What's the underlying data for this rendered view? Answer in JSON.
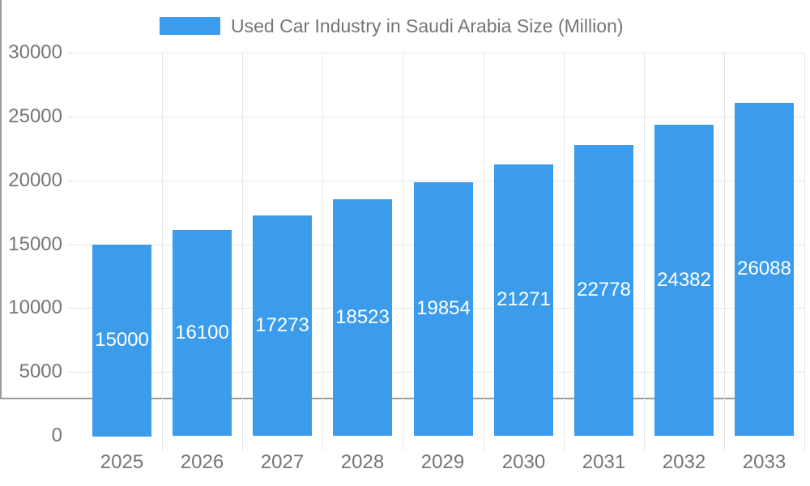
{
  "chart_data": {
    "type": "bar",
    "title": "Used Car Industry in Saudi Arabia Size (Million)",
    "legend": {
      "position": "top",
      "label": "Used Car Industry in Saudi Arabia Size (Million)"
    },
    "categories": [
      "2025",
      "2026",
      "2027",
      "2028",
      "2029",
      "2030",
      "2031",
      "2032",
      "2033"
    ],
    "values": [
      15000,
      16100,
      17273,
      18523,
      19854,
      21271,
      22778,
      24382,
      26088
    ],
    "xlabel": "",
    "ylabel": "",
    "ylim": [
      0,
      30000
    ],
    "yticks": [
      0,
      5000,
      10000,
      15000,
      20000,
      25000,
      30000
    ],
    "grid": true,
    "annotations_inside_bars": true,
    "colors": {
      "bar": "#3B9CEC",
      "annotation_text": "#FFFFFF",
      "tick_label_text": "#757575",
      "legend_text": "#757575",
      "gridline": "#E6E6E6",
      "axis_line": "#9A9A9A",
      "background": "#FFFFFF"
    }
  }
}
